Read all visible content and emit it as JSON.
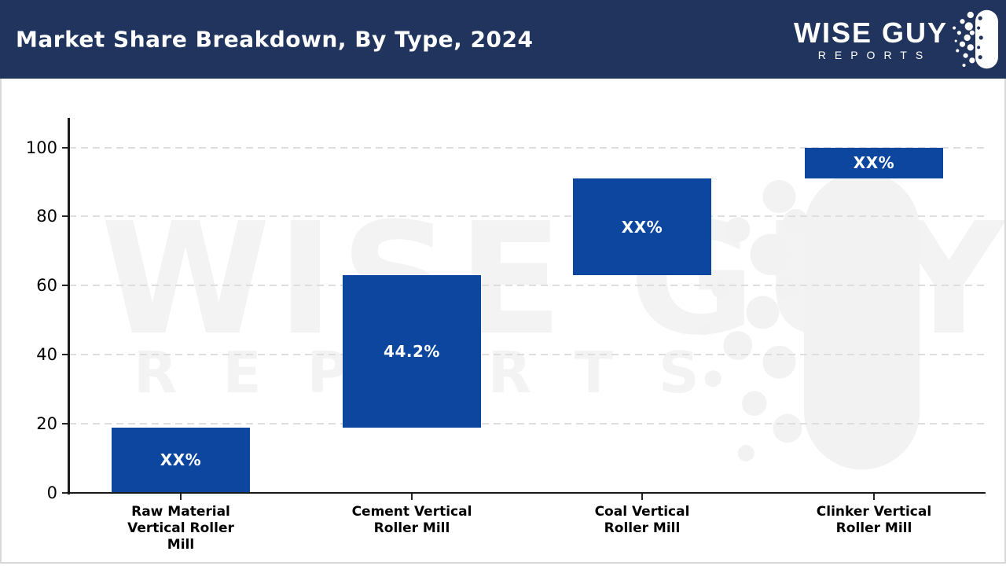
{
  "header": {
    "title": "Market Share Breakdown, By Type, 2024",
    "logo": {
      "line1": "WISE GUY",
      "line2": "REPORTS"
    }
  },
  "watermark": {
    "line1": "WISE GUY",
    "line2": "REPORTS"
  },
  "chart_data": {
    "type": "bar",
    "subtype": "waterfall-floating-bars",
    "title": "Market Share Breakdown, By Type, 2024",
    "categories": [
      "Raw Material Vertical Roller Mill",
      "Cement Vertical Roller Mill",
      "Coal Vertical Roller Mill",
      "Clinker Vertical Roller Mill"
    ],
    "category_display_lines": [
      [
        "Raw Material",
        "Vertical Roller",
        "Mill"
      ],
      [
        "Cement Vertical",
        "Roller Mill"
      ],
      [
        "Coal Vertical",
        "Roller Mill"
      ],
      [
        "Clinker Vertical",
        "Roller Mill"
      ]
    ],
    "segments": [
      {
        "start": 0,
        "end": 18.8,
        "delta": 18.8,
        "label": "XX%"
      },
      {
        "start": 18.8,
        "end": 63.0,
        "delta": 44.2,
        "label": "44.2%"
      },
      {
        "start": 63.0,
        "end": 90.9,
        "delta": 27.9,
        "label": "XX%"
      },
      {
        "start": 90.9,
        "end": 100,
        "delta": 9.1,
        "label": "XX%"
      }
    ],
    "xlabel": "",
    "ylabel": "",
    "ylim": [
      0,
      105
    ],
    "yticks": [
      0,
      20,
      40,
      60,
      80,
      100
    ],
    "grid": "horizontal-dashed",
    "legend": "none",
    "bar_color": "#0c469e",
    "bar_label_color": "#ffffff"
  },
  "colors": {
    "header_bg": "#20345e",
    "bar": "#0c469e",
    "grid": "#dedede",
    "axis": "#1a1a1a",
    "watermark": "#f3f3f3",
    "frame": "#d9d9d9"
  }
}
